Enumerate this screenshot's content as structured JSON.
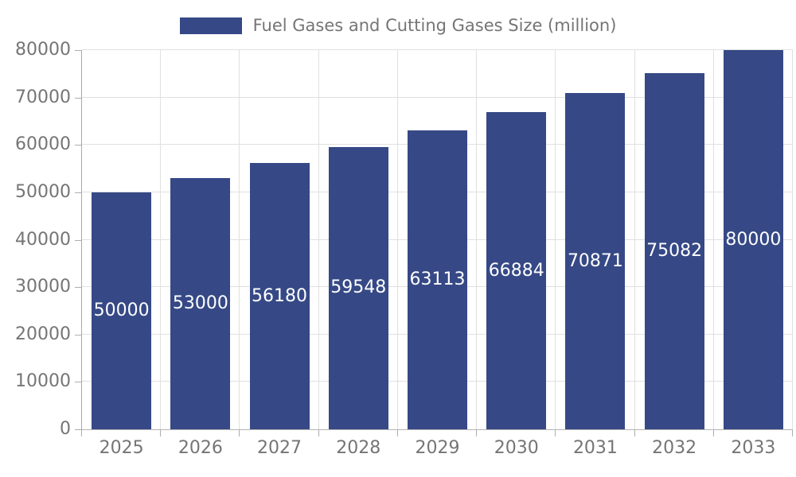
{
  "legend": {
    "label": "Fuel Gases and Cutting Gases Size (million)"
  },
  "colors": {
    "bar": "#364986",
    "axis_label": "#757575",
    "legend_text": "#757575",
    "grid": "#e0e0e0",
    "axis_line": "#adadad",
    "value_label": "#ffffff"
  },
  "chart_data": {
    "type": "bar",
    "categories": [
      "2025",
      "2026",
      "2027",
      "2028",
      "2029",
      "2030",
      "2031",
      "2032",
      "2033"
    ],
    "values": [
      50000,
      53000,
      56180,
      59548,
      63113,
      66884,
      70871,
      75082,
      80000
    ],
    "title": "Fuel Gases and Cutting Gases Size (million)",
    "xlabel": "",
    "ylabel": "",
    "ylim": [
      0,
      80000
    ],
    "yticks": [
      0,
      10000,
      20000,
      30000,
      40000,
      50000,
      60000,
      70000,
      80000
    ],
    "grid": true,
    "legend_position": "top",
    "value_labels": "inside-center"
  }
}
